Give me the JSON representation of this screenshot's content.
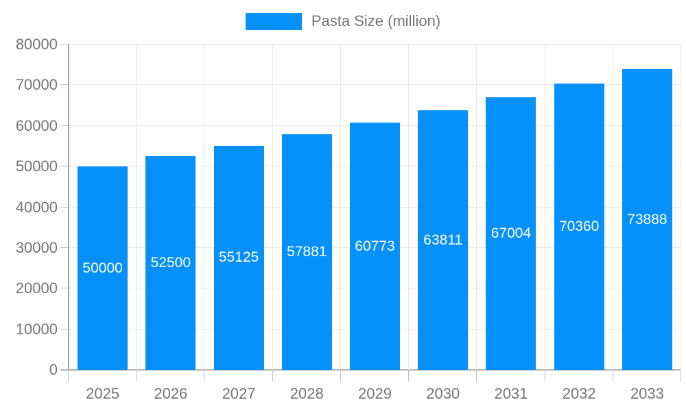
{
  "chart_data": {
    "type": "bar",
    "title": "",
    "legend_label": "Pasta Size (million)",
    "legend_position": "top-center",
    "categories": [
      "2025",
      "2026",
      "2027",
      "2028",
      "2029",
      "2030",
      "2031",
      "2032",
      "2033"
    ],
    "values": [
      50000,
      52500,
      55125,
      57881,
      60773,
      63811,
      67004,
      70360,
      73888
    ],
    "value_labels": [
      "50000",
      "52500",
      "55125",
      "57881",
      "60773",
      "63811",
      "67004",
      "70360",
      "73888"
    ],
    "xlabel": "",
    "ylabel": "",
    "ylim": [
      0,
      80000
    ],
    "ytick_step": 10000,
    "ytick_labels": [
      "0",
      "10000",
      "20000",
      "30000",
      "40000",
      "50000",
      "60000",
      "70000",
      "80000"
    ],
    "grid": true,
    "colors": {
      "bar": "#0590fa",
      "bar_value_text": "#ffffff",
      "axis_text": "#757575",
      "legend_text": "#757575",
      "grid_line": "#e6e6e6",
      "zero_line": "#b3b3b3",
      "axis_line": "#a3a3a3",
      "tick": "#bfbfbf",
      "background": "#ffffff"
    }
  }
}
